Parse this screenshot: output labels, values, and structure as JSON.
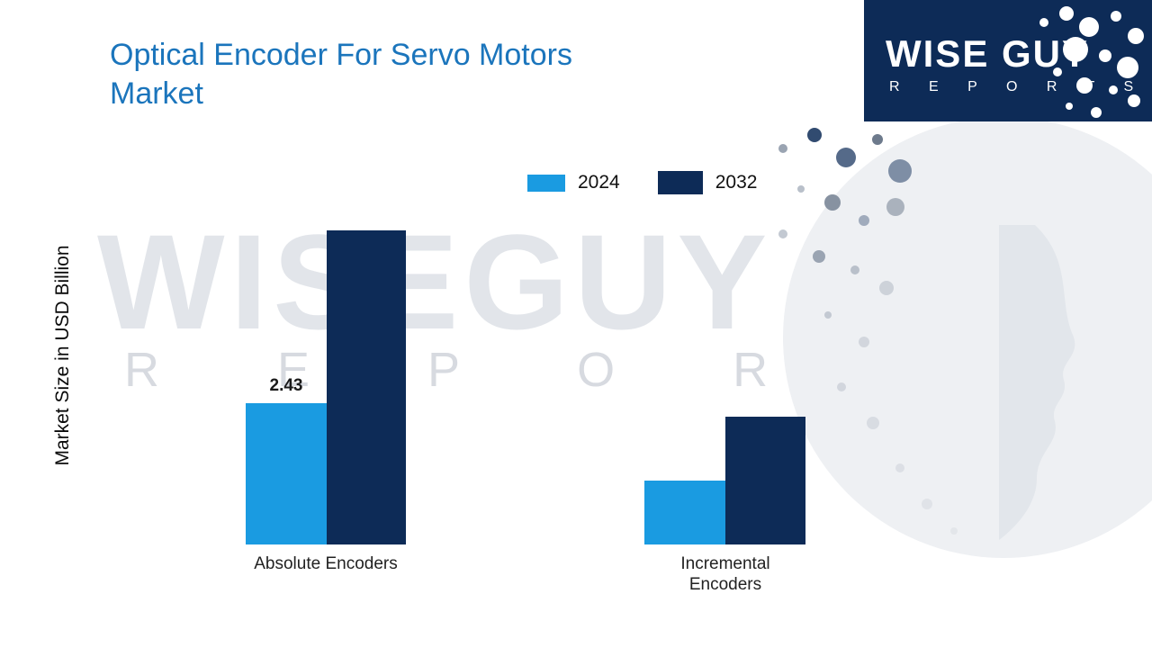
{
  "page": {
    "title": "Optical Encoder For Servo Motors Market"
  },
  "logo": {
    "line1": "WISE GUY",
    "line2": "R E P O R T S"
  },
  "watermark": {
    "line1": "WISEGUY",
    "line2": "R E P O R T S"
  },
  "chart_data": {
    "type": "bar",
    "title": "Optical Encoder For Servo Motors Market",
    "xlabel": "",
    "ylabel": "Market Size in USD Billion",
    "categories": [
      "Absolute Encoders",
      "Incremental Encoders"
    ],
    "series": [
      {
        "name": "2024",
        "color": "#1a9be1",
        "values": [
          2.43,
          1.1
        ]
      },
      {
        "name": "2032",
        "color": "#0d2b57",
        "values": [
          5.4,
          2.2
        ]
      }
    ],
    "value_label": "2.43",
    "legend_position": "top",
    "grid": false,
    "ylim": [
      0,
      6
    ],
    "colors": {
      "accent_blue": "#1a9be1",
      "navy": "#0d2b57",
      "title_blue": "#1b75bc"
    }
  }
}
